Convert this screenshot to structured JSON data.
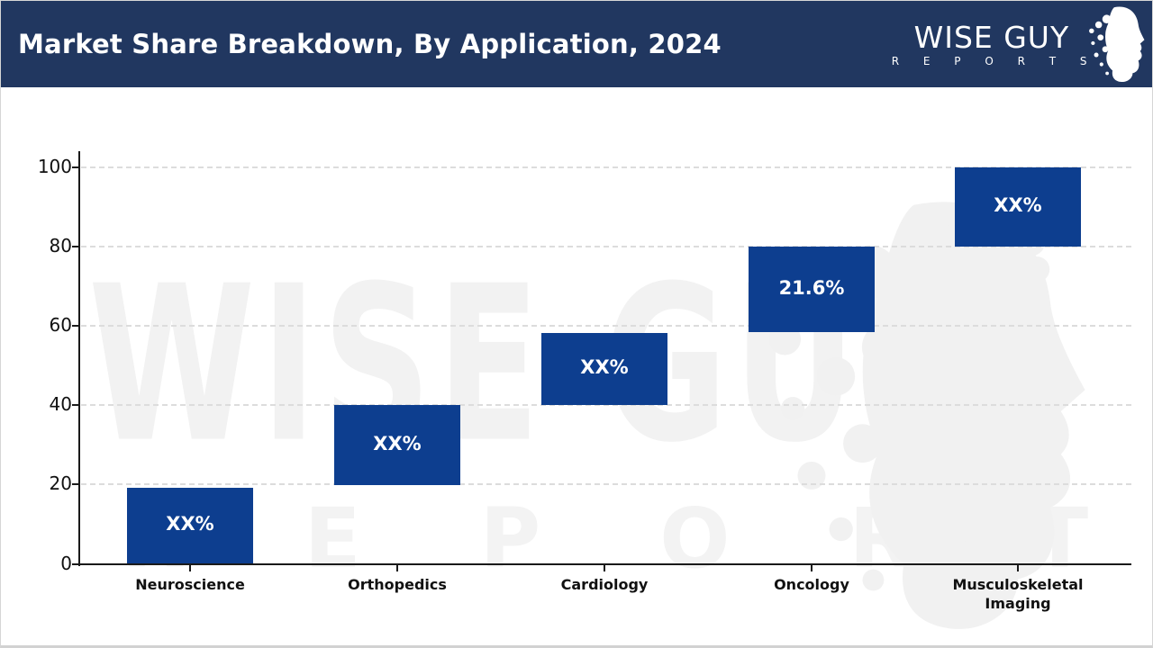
{
  "page": {
    "background": "#ffffff",
    "border_color": "#d6d6d6"
  },
  "header": {
    "title": "Market Share Breakdown, By Application, 2024",
    "bg_color": "#213760",
    "title_color": "#ffffff",
    "logo": {
      "line1": "WISE GUY",
      "line2": "R E P O R T S"
    }
  },
  "watermark": {
    "line1": "WISE GUY",
    "line2": "R E P O R T S"
  },
  "chart_data": {
    "type": "bar",
    "variant": "floating-segment-waterfall",
    "title": "Market Share Breakdown, By Application, 2024",
    "categories": [
      "Neuroscience",
      "Orthopedics",
      "Cardiology",
      "Oncology",
      "Musculoskeletal Imaging"
    ],
    "category_label_lines": [
      [
        "Neuroscience"
      ],
      [
        "Orthopedics"
      ],
      [
        "Cardiology"
      ],
      [
        "Oncology"
      ],
      [
        "Musculoskeletal",
        "Imaging"
      ]
    ],
    "segments": [
      {
        "category": "Neuroscience",
        "start": 0,
        "end": 19.2,
        "label": "XX%"
      },
      {
        "category": "Orthopedics",
        "start": 19.8,
        "end": 40.1,
        "label": "XX%"
      },
      {
        "category": "Cardiology",
        "start": 40.1,
        "end": 58.2,
        "label": "XX%"
      },
      {
        "category": "Oncology",
        "start": 58.4,
        "end": 80,
        "label": "21.6%"
      },
      {
        "category": "Musculoskeletal Imaging",
        "start": 80,
        "end": 100,
        "label": "XX%"
      }
    ],
    "yticks": [
      0,
      20,
      40,
      60,
      80,
      100
    ],
    "ylim": [
      0,
      105
    ],
    "xlabel": "",
    "ylabel": "",
    "grid": "horizontal-dashed",
    "legend": "none",
    "bar_color": "#0d3e8f",
    "bar_label_color": "#ffffff",
    "axis_color": "#1a1a1a",
    "grid_color": "#dcdcdc"
  }
}
